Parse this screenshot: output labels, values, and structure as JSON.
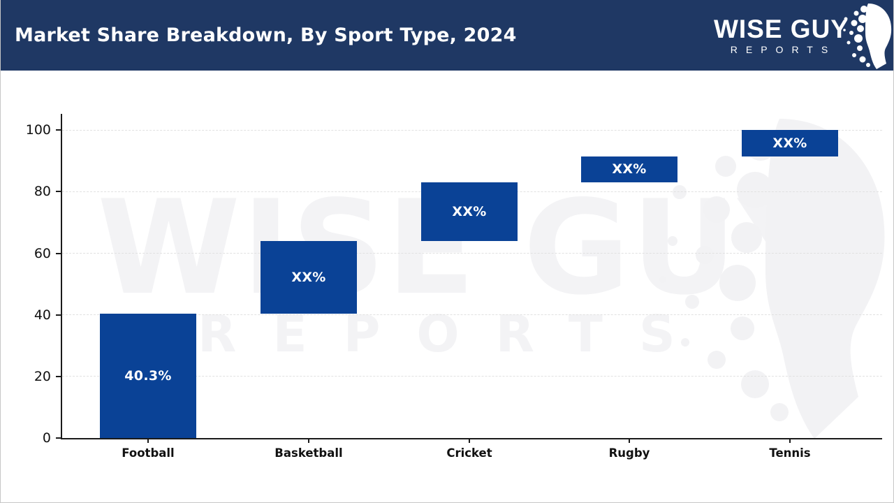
{
  "header": {
    "title": "Market Share Breakdown, By Sport Type, 2024",
    "logo": {
      "line1": "WISE GUY",
      "line2": "REPORTS"
    }
  },
  "watermark": {
    "line1": "WISE GUY",
    "line2": "REPORTS"
  },
  "colors": {
    "header_bg": "#1f3864",
    "bar": "#0a4296",
    "bar_label": "#ffffff",
    "axis": "#1a1a1a",
    "gridline": "#e1e1e1",
    "watermark": "#f3f3f5"
  },
  "chart_data": {
    "type": "bar",
    "subtype": "waterfall",
    "title": "Market Share Breakdown, By Sport Type, 2024",
    "categories": [
      "Football",
      "Basketball",
      "Cricket",
      "Rugby",
      "Tennis"
    ],
    "segments": [
      {
        "category": "Football",
        "start": 0,
        "end": 40.3,
        "label": "40.3%"
      },
      {
        "category": "Basketball",
        "start": 40.3,
        "end": 64,
        "label": "XX%"
      },
      {
        "category": "Cricket",
        "start": 64,
        "end": 83,
        "label": "XX%"
      },
      {
        "category": "Rugby",
        "start": 83,
        "end": 91.5,
        "label": "XX%"
      },
      {
        "category": "Tennis",
        "start": 91.5,
        "end": 100,
        "label": "XX%"
      }
    ],
    "yticks": [
      0,
      20,
      40,
      60,
      80,
      100
    ],
    "ylim": [
      0,
      105
    ],
    "xlabel": "",
    "ylabel": "",
    "grid": "horizontal-dashed",
    "legend": "none"
  }
}
